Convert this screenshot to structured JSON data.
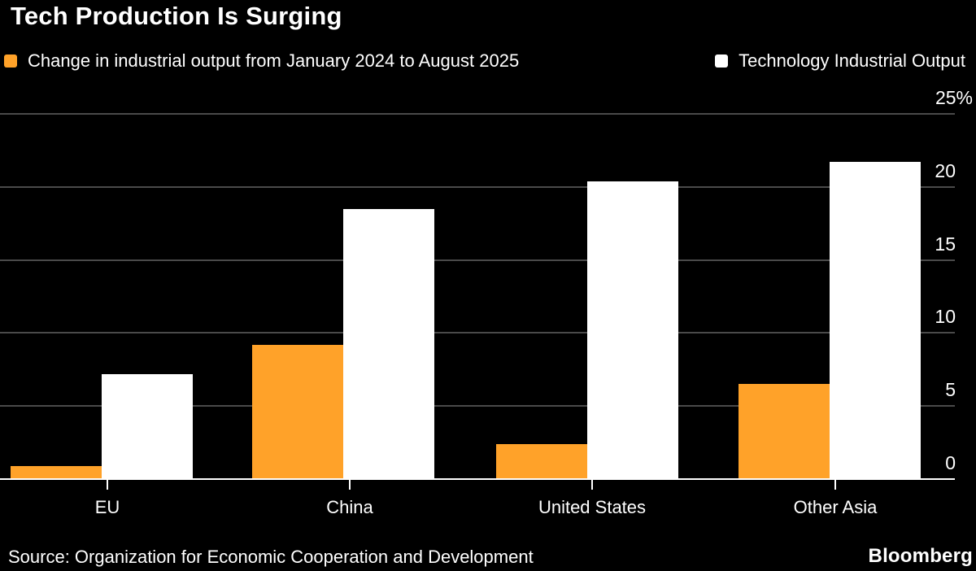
{
  "title": "Tech Production Is Surging",
  "legend": [
    {
      "label": "Change in industrial output from January 2024 to August 2025",
      "color": "#FFA229"
    },
    {
      "label": "Technology Industrial Output",
      "color": "#FFFFFF"
    }
  ],
  "footer": {
    "source": "Source: Organization for Economic Cooperation and Development",
    "brand": "Bloomberg"
  },
  "colors": {
    "background": "#000000",
    "accent_orange": "#FFA229",
    "series_white": "#FFFFFF",
    "gridline": "#4A4A4A",
    "baseline": "#FFFFFF",
    "text": "#FFFFFF"
  },
  "chart_data": {
    "type": "bar",
    "title": "Tech Production Is Surging",
    "categories": [
      "EU",
      "China",
      "United States",
      "Other Asia"
    ],
    "series": [
      {
        "name": "Change in industrial output from January 2024 to August 2025",
        "color": "#FFA229",
        "values": [
          0.9,
          9.2,
          2.4,
          6.5
        ]
      },
      {
        "name": "Technology Industrial Output",
        "color": "#FFFFFF",
        "values": [
          7.2,
          18.5,
          20.4,
          21.7
        ]
      }
    ],
    "xlabel": "",
    "ylabel": "%",
    "ylim": [
      0,
      25
    ],
    "y_axis": {
      "side": "right",
      "max": 25,
      "ticks": [
        0,
        5,
        10,
        15,
        20,
        25
      ],
      "tick_labels": [
        "0",
        "5",
        "10",
        "15",
        "20",
        "25%"
      ]
    },
    "grid": "horizontal",
    "legend_position": "top"
  }
}
